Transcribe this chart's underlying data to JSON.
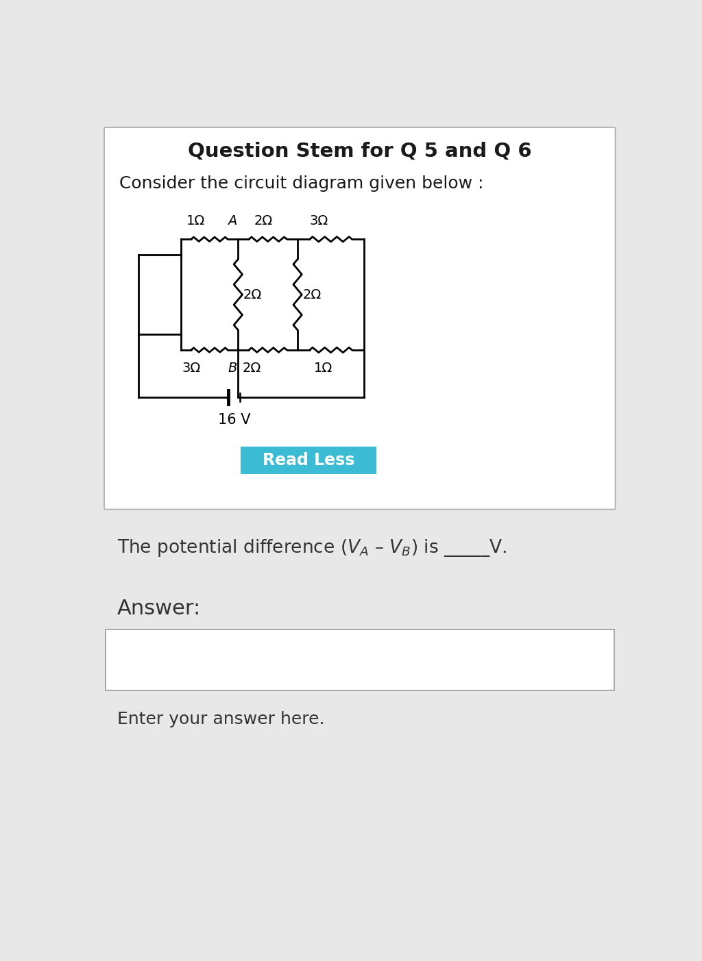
{
  "title": "Question Stem for Q 5 and Q 6",
  "subtitle": "Consider the circuit diagram given below :",
  "answer_label": "Answer:",
  "enter_text": "Enter your answer here.",
  "read_less_text": "Read Less",
  "read_less_color": "#3BBCD4",
  "bg_color": "#e8e8e8",
  "card_bg": "#ffffff",
  "border_color": "#aaaaaa",
  "text_color": "#1a1a1a",
  "dark_text": "#333333",
  "battery_voltage": "16 V",
  "node_A": "A",
  "node_B": "B",
  "res_1ohm_top": "1Ω",
  "res_2ohm_topmid": "2Ω",
  "res_3ohm_top": "3Ω",
  "res_2ohm_vmid1": "2Ω",
  "res_2ohm_vmid2": "2Ω",
  "res_3ohm_bot": "3Ω",
  "res_2ohm_botmid": "2Ω",
  "res_1ohm_bot": "1Ω"
}
